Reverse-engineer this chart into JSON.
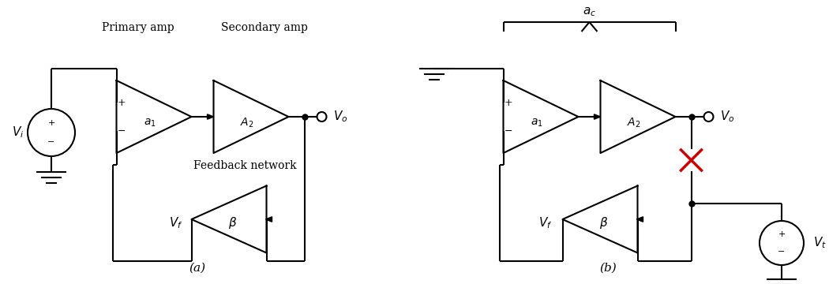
{
  "bg_color": "#ffffff",
  "line_color": "#000000",
  "red_color": "#cc0000",
  "fig_width": 10.5,
  "fig_height": 3.6,
  "label_a": "(a)",
  "label_b": "(b)",
  "text_primary_amp": "Primary amp",
  "text_secondary_amp": "Secondary amp",
  "text_feedback": "Feedback network",
  "text_a1": "$a_1$",
  "text_A2": "$A_2$",
  "text_beta": "$\\beta$",
  "text_Vi": "$V_i$",
  "text_Vo": "$V_o$",
  "text_Vf": "$V_f$",
  "text_ac": "$a_c$",
  "text_Vt": "$V_t$"
}
